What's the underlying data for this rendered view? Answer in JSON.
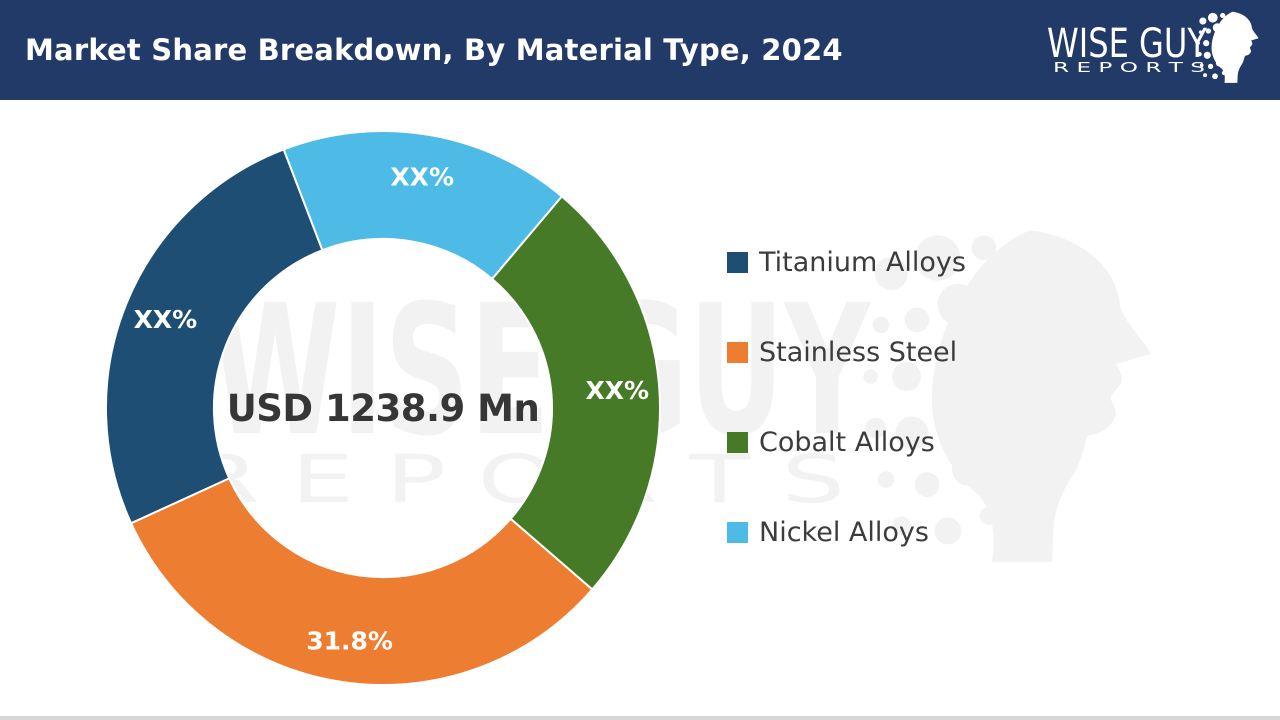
{
  "header": {
    "title": "Market Share Breakdown, By Material Type, 2024",
    "bg_color": "#223a68",
    "logo": {
      "line1": "WISE GUY",
      "line2": "R E P O R T S"
    }
  },
  "watermark": {
    "line1": "WISE GUY",
    "line2": "R E P O R T S",
    "color": "#f2f2f2"
  },
  "chart_data": {
    "type": "pie",
    "subtype": "donut",
    "center_label": "USD 1238.9 Mn",
    "legend_position": "right",
    "grid": false,
    "start_angle_deg": 111,
    "direction": "ccw",
    "inner_radius_ratio": 0.61,
    "slices": [
      {
        "name": "Titanium Alloys",
        "label": "XX%",
        "value_pct_est": 26.0,
        "color": "#1f4e74"
      },
      {
        "name": "Stainless Steel",
        "label": "31.8%",
        "value_pct_est": 31.8,
        "color": "#ed7d31"
      },
      {
        "name": "Cobalt Alloys",
        "label": "XX%",
        "value_pct_est": 25.2,
        "color": "#477a26"
      },
      {
        "name": "Nickel Alloys",
        "label": "XX%",
        "value_pct_est": 17.0,
        "color": "#4dbbe5"
      }
    ]
  }
}
